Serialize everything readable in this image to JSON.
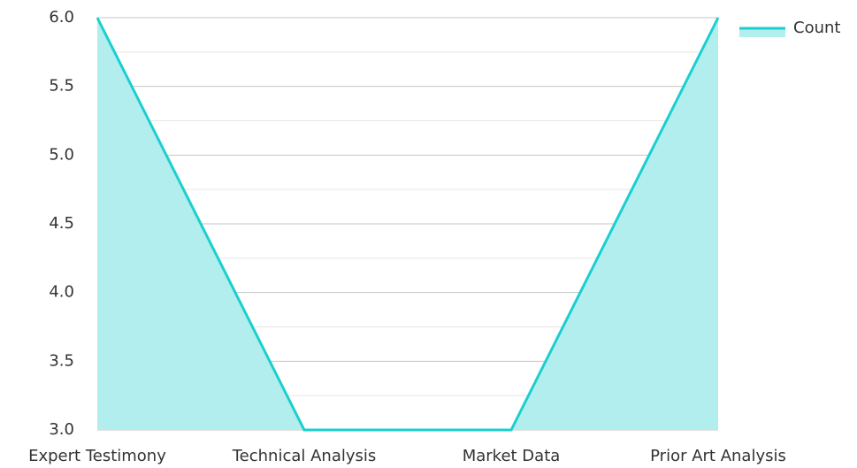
{
  "chart_data": {
    "type": "area",
    "categories": [
      "Expert Testimony",
      "Technical Analysis",
      "Market Data",
      "Prior Art Analysis"
    ],
    "series": [
      {
        "name": "Count",
        "color": "#1ccfcf",
        "fill": "#b2eeee",
        "values": [
          6,
          3,
          3,
          6
        ]
      }
    ],
    "ylim": [
      3,
      6
    ],
    "yticks": [
      {
        "value": 3,
        "label": "3.0"
      },
      {
        "value": 3.5,
        "label": "3.5"
      },
      {
        "value": 4,
        "label": "4.0"
      },
      {
        "value": 4.5,
        "label": "4.5"
      },
      {
        "value": 5,
        "label": "5.0"
      },
      {
        "value": 5.5,
        "label": "5.5"
      },
      {
        "value": 6,
        "label": "6.0"
      }
    ],
    "minor_yticks": [
      3.25,
      3.75,
      4.25,
      4.75,
      5.25,
      5.75
    ],
    "grid": true,
    "legend": "top-right"
  }
}
